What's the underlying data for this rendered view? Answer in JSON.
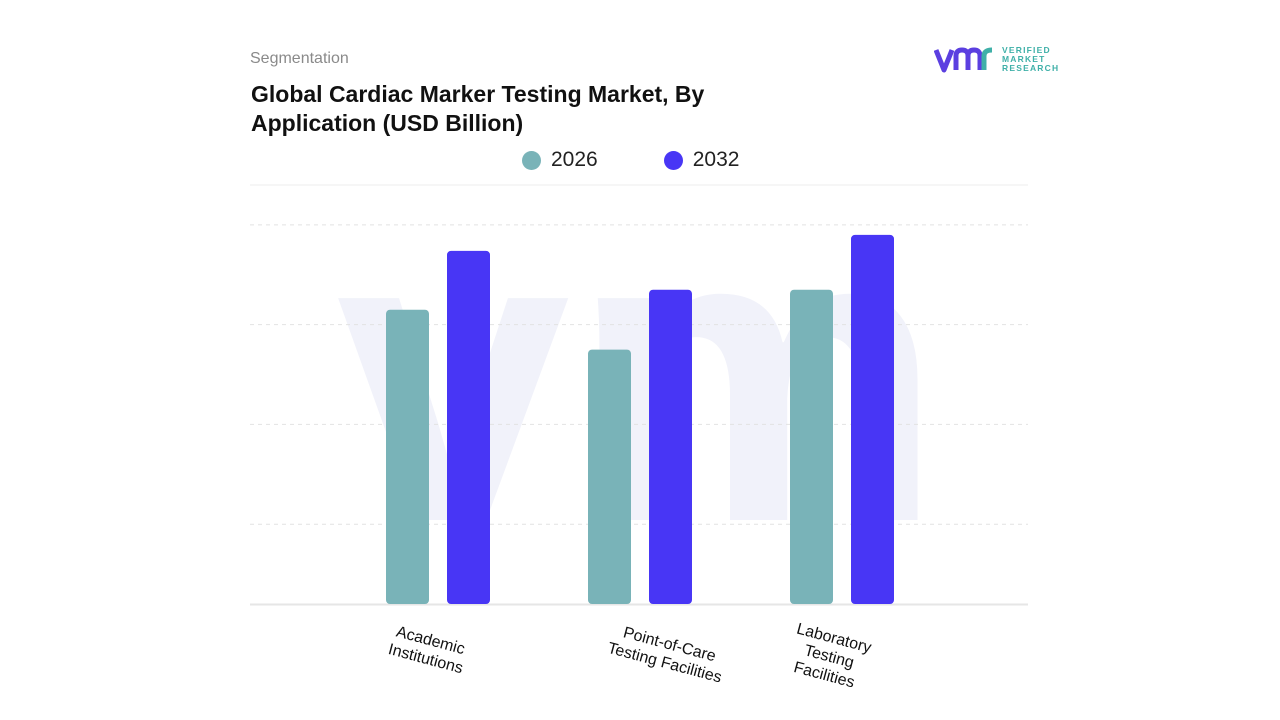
{
  "header": {
    "segment_label": "Segmentation",
    "title": "Global Cardiac Marker Testing Market, By Application (USD Billion)"
  },
  "logo": {
    "line1": "VERIFIED",
    "line2": "MARKET",
    "line3": "RESEARCH"
  },
  "colors": {
    "series_2026": "#79b3b8",
    "series_2032": "#4836f5",
    "grid": "#e2e2e2"
  },
  "chart_data": {
    "type": "bar",
    "title": "Global Cardiac Marker Testing Market, By Application (USD Billion)",
    "categories": [
      "Academic Institutions",
      "Point-of-Care Testing Facilities",
      "Laboratory Testing Facilities"
    ],
    "series": [
      {
        "name": "2026",
        "values": [
          2.95,
          2.55,
          3.15
        ]
      },
      {
        "name": "2032",
        "values": [
          3.54,
          3.15,
          3.7
        ]
      }
    ],
    "ylim": [
      0,
      4.2
    ],
    "grid": true,
    "legend_position": "top-center",
    "xlabel": "",
    "ylabel": ""
  }
}
